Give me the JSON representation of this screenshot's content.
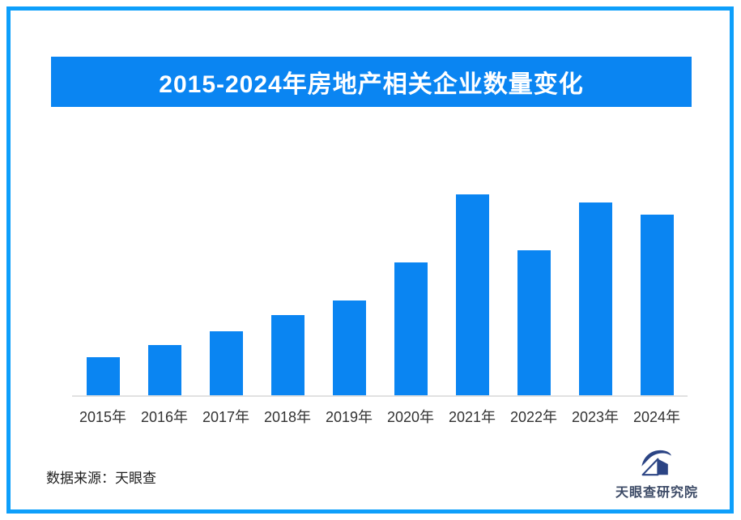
{
  "page": {
    "source_note": "数据来源：天眼查",
    "logo_text": "天眼查研究院"
  },
  "colors": {
    "primary_blue": "#0a85f2",
    "frame_blue": "#0d9ffb",
    "axis_gray": "#e1e1e1",
    "axis_label_color": "#333333",
    "logo_navy": "#2b4484"
  },
  "chart_data": {
    "type": "bar",
    "title": "2015-2024年房地产相关企业数量变化",
    "categories": [
      "2015年",
      "2016年",
      "2017年",
      "2018年",
      "2019年",
      "2020年",
      "2021年",
      "2022年",
      "2023年",
      "2024年"
    ],
    "values": [
      19,
      25,
      32,
      40,
      47,
      66,
      100,
      72,
      96,
      90
    ],
    "value_units": "relative scale estimated from bar heights; tallest bar (2021) = 100; chart shows no numeric axis or data labels",
    "xlabel": "",
    "ylabel": "",
    "ylim": [
      0,
      100
    ],
    "bar_color": "#0a85f2",
    "grid": false,
    "legend": false,
    "source_note": "数据来源：天眼查"
  }
}
